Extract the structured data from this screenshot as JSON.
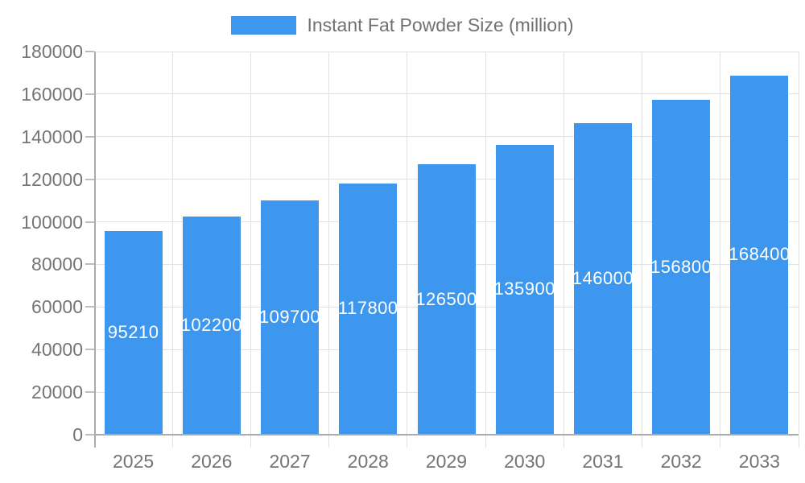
{
  "legend": {
    "label": "Instant Fat Powder Size (million)",
    "swatch_color": "#3e97ef"
  },
  "chart_data": {
    "type": "bar",
    "title": "Instant Fat Powder Size (million)",
    "categories": [
      "2025",
      "2026",
      "2027",
      "2028",
      "2029",
      "2030",
      "2031",
      "2032",
      "2033"
    ],
    "series": [
      {
        "name": "Instant Fat Powder Size (million)",
        "values": [
          95210,
          102200,
          109700,
          117800,
          126500,
          135900,
          146000,
          156800,
          168400
        ]
      }
    ],
    "bar_labels": [
      "95210",
      "102200",
      "109700",
      "117800",
      "126500",
      "135900",
      "146000",
      "156800",
      "168400"
    ],
    "xlabel": "",
    "ylabel": "",
    "ylim": [
      0,
      180000
    ],
    "y_tick_step": 20000,
    "y_ticks": [
      "0",
      "20000",
      "40000",
      "60000",
      "80000",
      "100000",
      "120000",
      "140000",
      "160000",
      "180000"
    ],
    "grid": "on",
    "legend_position": "top-center"
  },
  "colors": {
    "bar": "#3e97ef",
    "bar_label_text": "#ffffff",
    "axis_text": "#757575",
    "legend_text": "#717171",
    "gridline": "#e0e0e0",
    "axis_line": "#ababab",
    "background": "#ffffff"
  }
}
